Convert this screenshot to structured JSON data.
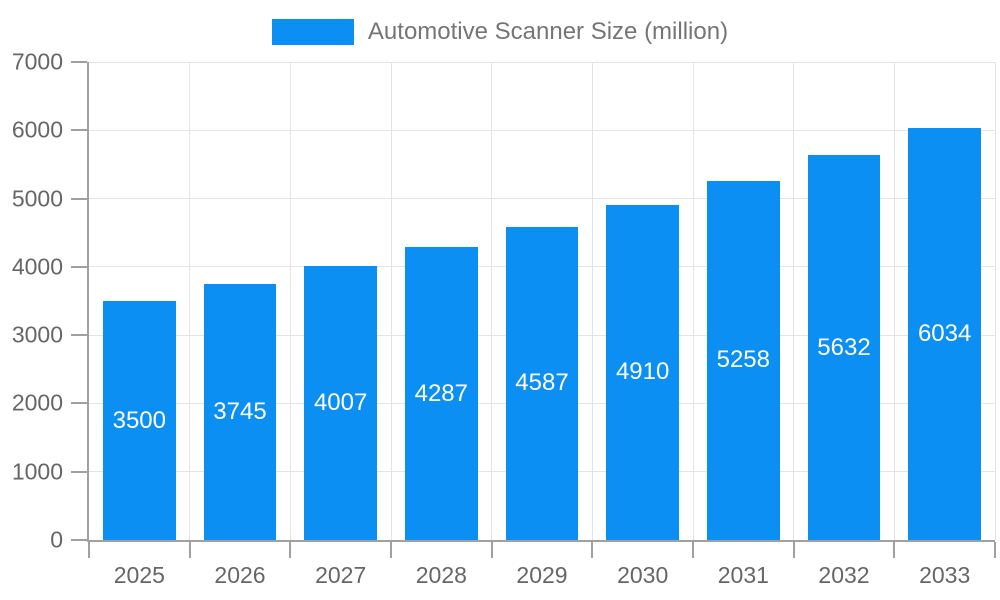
{
  "chart_data": {
    "type": "bar",
    "title": "Automotive Scanner Size (million)",
    "categories": [
      "2025",
      "2026",
      "2027",
      "2028",
      "2029",
      "2030",
      "2031",
      "2032",
      "2033"
    ],
    "values": [
      3500,
      3745,
      4007,
      4287,
      4587,
      4910,
      5258,
      5632,
      6034
    ],
    "xlabel": "",
    "ylabel": "",
    "ylim": [
      0,
      7000
    ],
    "ytick_step": 1000,
    "grid": true,
    "legend_position": "top",
    "bar_color": "#0b8ff2",
    "bar_label_color": "#ffffff",
    "tick_label_color": "#666666",
    "legend_text_color": "#757575",
    "grid_color": "#e4e4e4",
    "axis_color": "#a0a0a0"
  }
}
